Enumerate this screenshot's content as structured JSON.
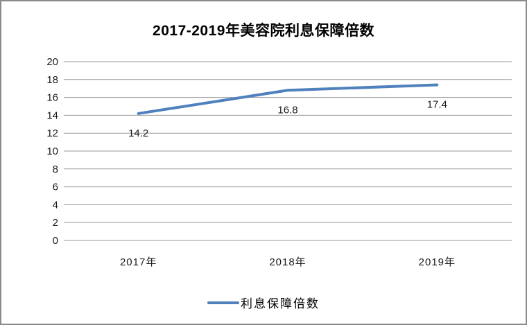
{
  "frame": {
    "background_color": "#ffffff",
    "border_color": "#8a8a8a"
  },
  "chart_data": {
    "type": "line",
    "title": "2017-2019年美容院利息保障倍数",
    "categories": [
      "2017年",
      "2018年",
      "2019年"
    ],
    "series": [
      {
        "name": "利息保障倍数",
        "values": [
          14.2,
          16.8,
          17.4
        ],
        "color": "#4F81BD"
      }
    ],
    "data_labels": [
      "14.2",
      "16.8",
      "17.4"
    ],
    "xlabel": "",
    "ylabel": "",
    "ylim": [
      0,
      20
    ],
    "yticks": [
      0,
      2,
      4,
      6,
      8,
      10,
      12,
      14,
      16,
      18,
      20
    ],
    "grid": true,
    "gridline_color": "#999999",
    "tick_label_color": "#1a1a1a",
    "data_label_color": "#1a1a1a",
    "legend_position": "bottom"
  }
}
